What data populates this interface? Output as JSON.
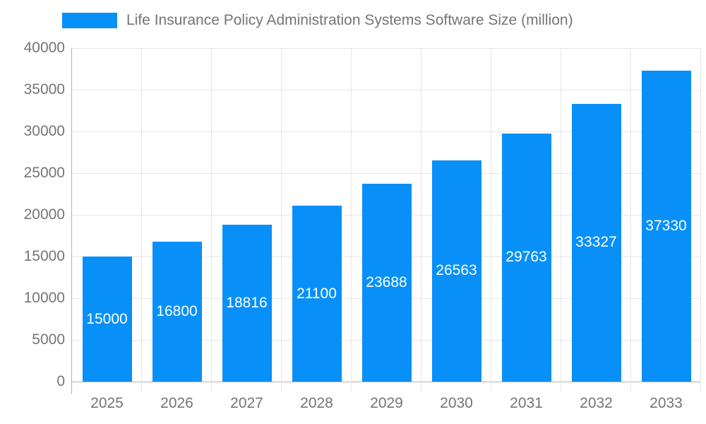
{
  "chart_data": {
    "type": "bar",
    "title": "Life Insurance Policy Administration Systems Software Size (million)",
    "legend": {
      "position": "top-left",
      "entries": [
        {
          "label": "Life Insurance Policy Administration Systems Software Size (million)",
          "color": "#0890F8"
        }
      ]
    },
    "categories": [
      "2025",
      "2026",
      "2027",
      "2028",
      "2029",
      "2030",
      "2031",
      "2032",
      "2033"
    ],
    "series": [
      {
        "name": "Life Insurance Policy Administration Systems Software Size (million)",
        "values": [
          15000,
          16800,
          18816,
          21100,
          23688,
          26563,
          29763,
          33327,
          37330
        ]
      }
    ],
    "data_labels": [
      "15000",
      "16800",
      "18816",
      "21100",
      "23688",
      "26563",
      "29763",
      "33327",
      "37330"
    ],
    "xlabel": "",
    "ylabel": "",
    "ylim": [
      0,
      40000
    ],
    "yticks": [
      0,
      5000,
      10000,
      15000,
      20000,
      25000,
      30000,
      35000,
      40000
    ],
    "grid": true,
    "colors": {
      "bar": "#0890F8",
      "bar_label_text": "#ffffff",
      "axis_text": "#757575",
      "gridline": "#e6e6e6",
      "axis_line": "#b3b3b3",
      "background": "#ffffff"
    }
  }
}
